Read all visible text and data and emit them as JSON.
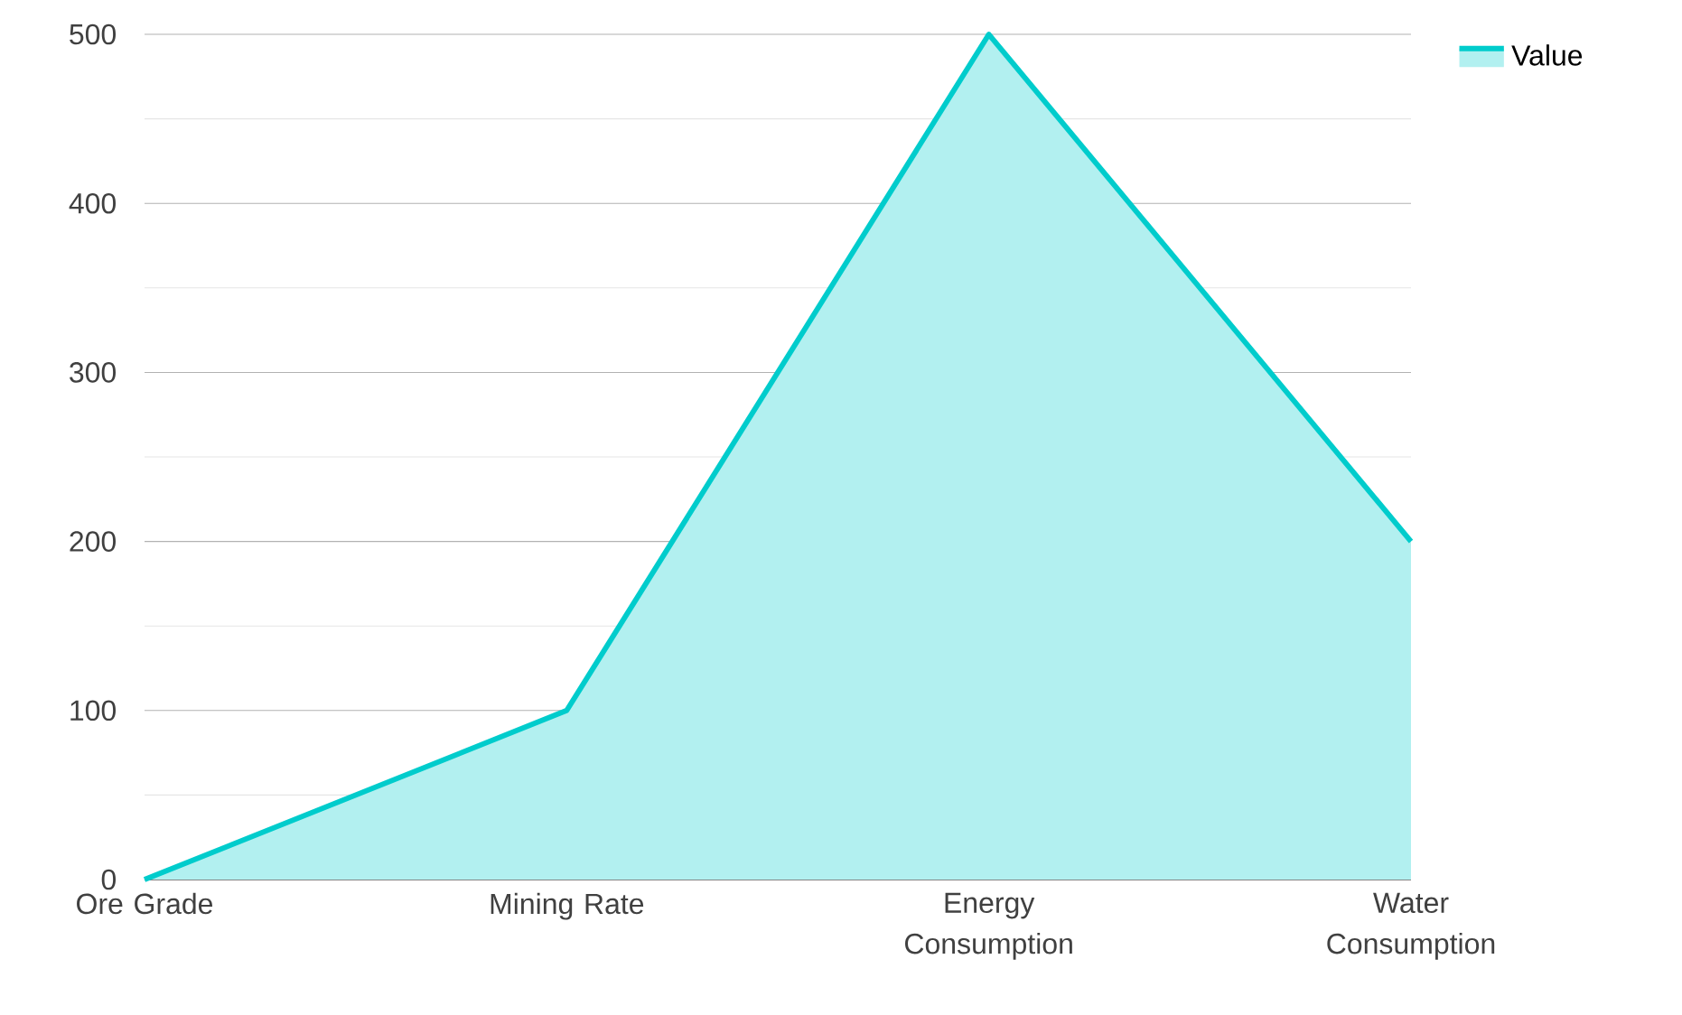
{
  "chart_data": {
    "type": "area",
    "categories": [
      "Ore Grade",
      "Mining Rate",
      "Energy Consumption",
      "Water Consumption"
    ],
    "series": [
      {
        "name": "Value",
        "color": "#00cccc",
        "values": [
          0,
          100,
          500,
          200
        ]
      }
    ],
    "ylim": [
      0,
      500
    ],
    "yticks": [
      0,
      100,
      200,
      300,
      400,
      500
    ],
    "grid": "y",
    "legend": "top right"
  }
}
